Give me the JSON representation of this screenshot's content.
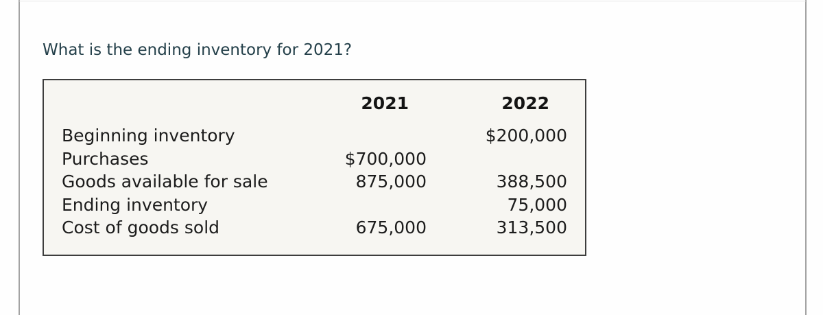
{
  "question": {
    "text": "What is the ending inventory for 2021?"
  },
  "table": {
    "col_headers": {
      "y2021": "2021",
      "y2022": "2022"
    },
    "rows": [
      {
        "label": "Beginning inventory",
        "y2021": "",
        "y2022": "$200,000"
      },
      {
        "label": "Purchases",
        "y2021": "$700,000",
        "y2022": ""
      },
      {
        "label": "Goods available for sale",
        "y2021": "875,000",
        "y2022": "388,500"
      },
      {
        "label": "Ending inventory",
        "y2021": "",
        "y2022": "75,000"
      },
      {
        "label": "Cost of goods sold",
        "y2021": "675,000",
        "y2022": "313,500"
      }
    ]
  },
  "colors": {
    "question_text": "#24404a",
    "table_border": "#3d3d3d",
    "table_background": "#f7f6f2",
    "table_text": "#1c1c1c",
    "page_edge_line": "#a3a3a3"
  }
}
